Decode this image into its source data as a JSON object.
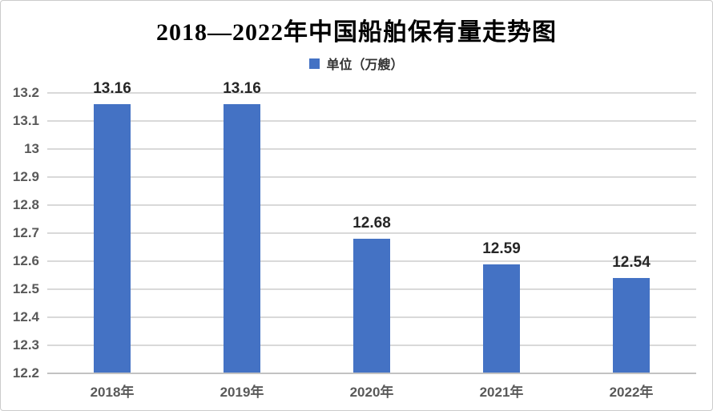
{
  "title": "2018—2022年中国船舶保有量走势图",
  "legend": {
    "label": "单位（万艘）",
    "marker_color": "#4472C4"
  },
  "chart_data": {
    "type": "bar",
    "title": "2018—2022年中国船舶保有量走势图",
    "categories": [
      "2018年",
      "2019年",
      "2020年",
      "2021年",
      "2022年"
    ],
    "values": [
      13.16,
      13.16,
      12.68,
      12.59,
      12.54
    ],
    "data_labels": [
      "13.16",
      "13.16",
      "12.68",
      "12.59",
      "12.54"
    ],
    "legend": "单位（万艘）",
    "legend_position": "top",
    "xlabel": "",
    "ylabel": "",
    "ylim": [
      12.2,
      13.2
    ],
    "ytick_step": 0.1,
    "ytick_labels": [
      "13.2",
      "13.1",
      "13",
      "12.9",
      "12.8",
      "12.7",
      "12.6",
      "12.5",
      "12.4",
      "12.3",
      "12.2"
    ],
    "grid": true,
    "bar_color": "#4472C4",
    "gridline_color": "#D9D9D9",
    "axis_label_color": "#595959",
    "data_label_color": "#262626"
  }
}
